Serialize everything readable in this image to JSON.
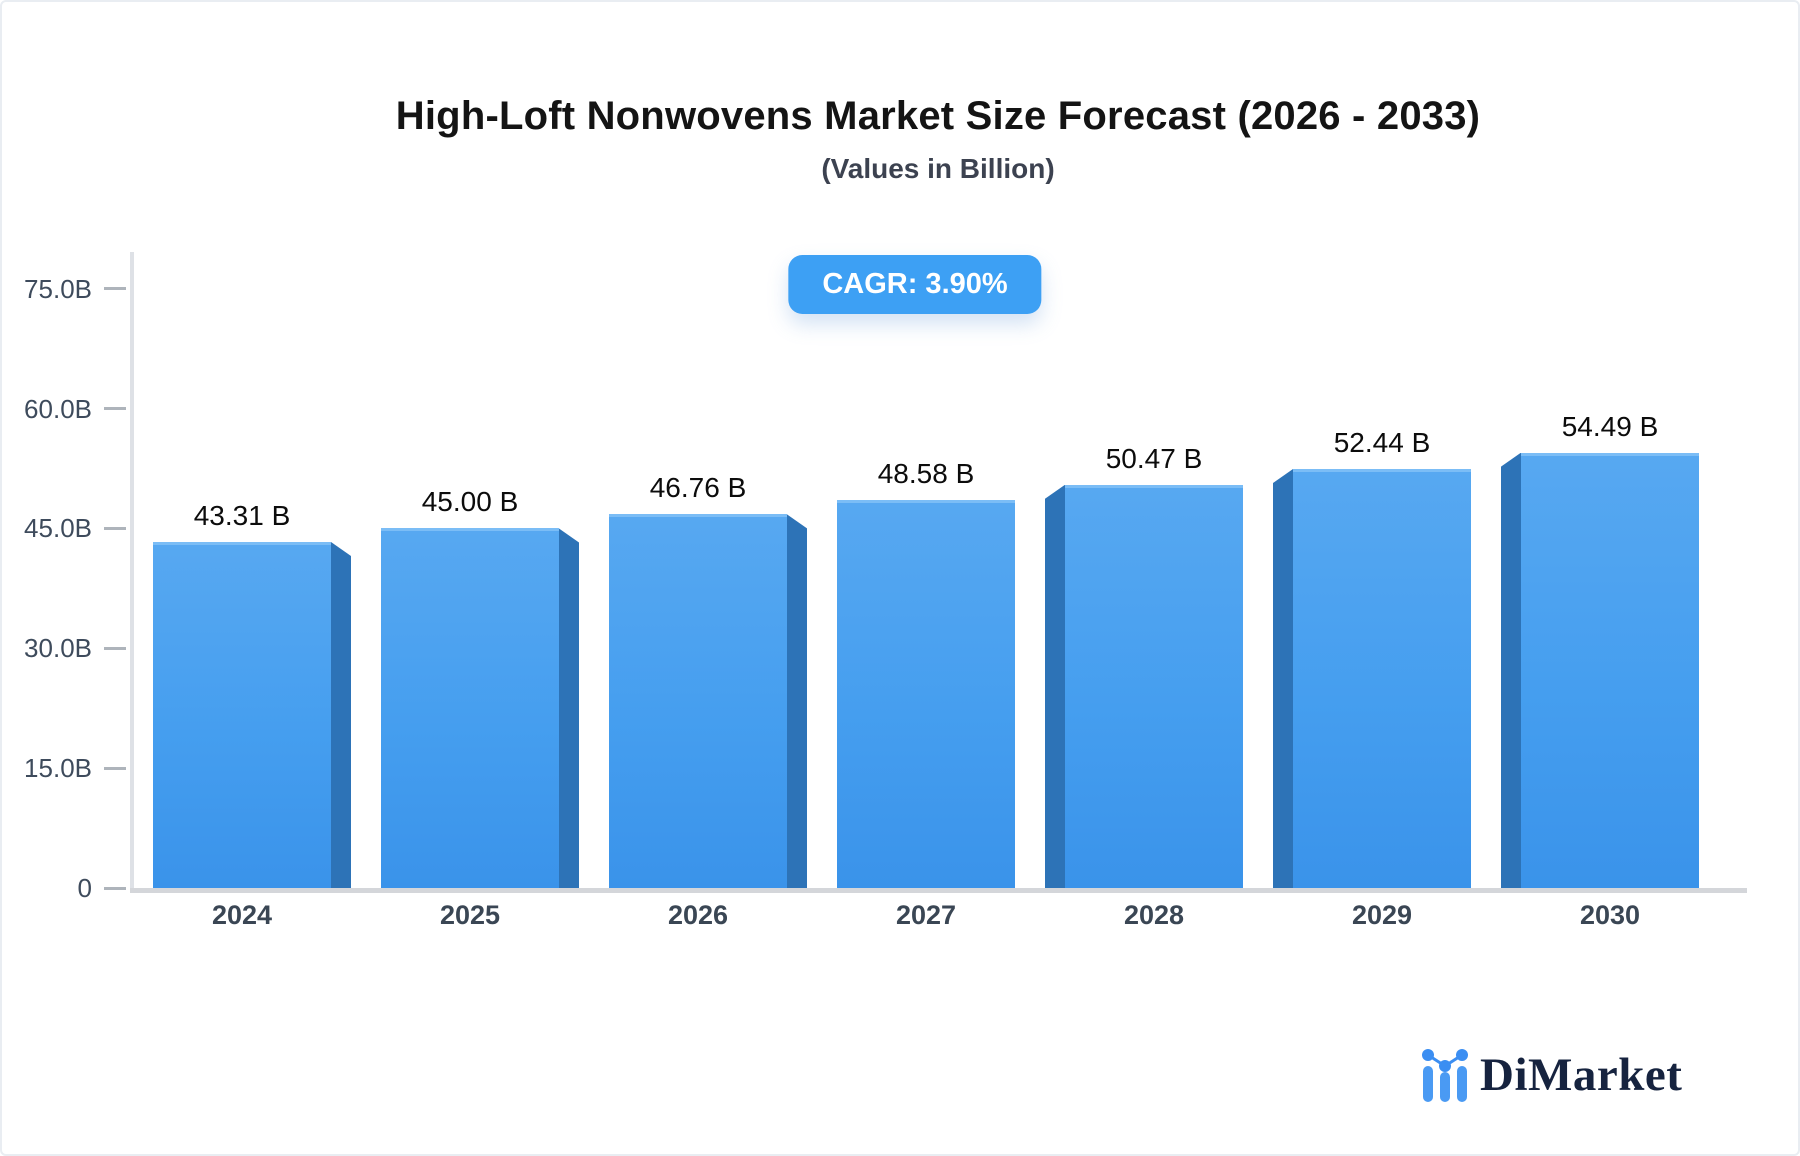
{
  "header": {
    "title": "High-Loft Nonwovens Market Size Forecast (2026 - 2033)",
    "subtitle": "(Values in Billion)",
    "cagr_badge": "CAGR: 3.90%"
  },
  "chart_data": {
    "type": "bar",
    "title": "High-Loft Nonwovens Market Size Forecast (2026 - 2033)",
    "subtitle": "(Values in Billion)",
    "unit": "Billion",
    "cagr": "3.90%",
    "categories": [
      "2024",
      "2025",
      "2026",
      "2027",
      "2028",
      "2029",
      "2030"
    ],
    "values": [
      43.31,
      45.0,
      46.76,
      48.58,
      50.47,
      52.44,
      54.49
    ],
    "value_labels": [
      "43.31 B",
      "45.00 B",
      "46.76 B",
      "48.58 B",
      "50.47 B",
      "52.44 B",
      "54.49 B"
    ],
    "y_ticks": [
      {
        "label": "0",
        "value": 0
      },
      {
        "label": "15.0B",
        "value": 15
      },
      {
        "label": "30.0B",
        "value": 30
      },
      {
        "label": "45.0B",
        "value": 45
      },
      {
        "label": "60.0B",
        "value": 60
      },
      {
        "label": "75.0B",
        "value": 75
      }
    ],
    "ylim": [
      0,
      75
    ],
    "grid": false,
    "legend": false
  },
  "brand": {
    "name": "DiMarket"
  },
  "colors": {
    "bar_face_top": "#57a8f1",
    "bar_face_bottom": "#3a93ea",
    "bar_side": "#2d73b7",
    "badge_bg": "#3da0f4",
    "axis": "#d4d6da",
    "tick_text": "#3e4b5c",
    "title_text": "#141414",
    "brand_navy": "#16233f",
    "brand_blue": "#4a9af3"
  }
}
